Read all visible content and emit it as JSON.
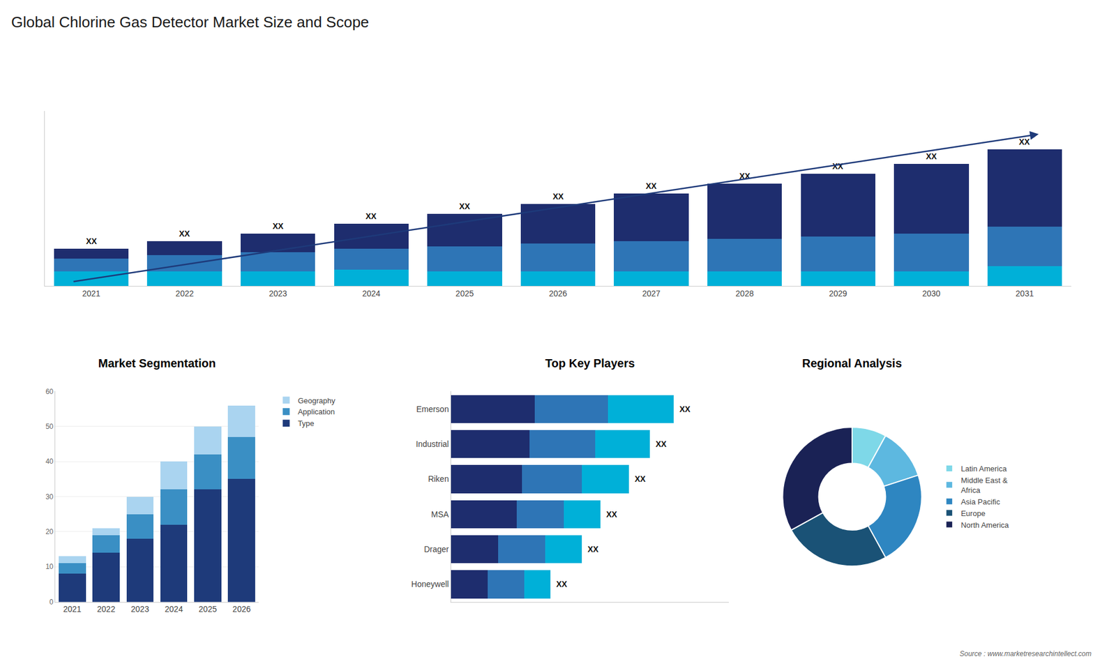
{
  "title": "Global Chlorine Gas Detector Market Size and Scope",
  "annotations": [
    "Source : www.marketresearchintellect.com"
  ],
  "chart_data": [
    {
      "type": "bar",
      "stacked": true,
      "categories": [
        "2021",
        "2022",
        "2023",
        "2024",
        "2025",
        "2026",
        "2027",
        "2028",
        "2029",
        "2030",
        "2031"
      ],
      "series": [
        {
          "color": "#00b0d8",
          "values": [
            0.6,
            0.6,
            0.6,
            0.65,
            0.6,
            0.6,
            0.6,
            0.6,
            0.6,
            0.6,
            0.79
          ]
        },
        {
          "color": "#2e75b6",
          "values": [
            0.5,
            0.65,
            0.75,
            0.85,
            1.0,
            1.1,
            1.2,
            1.3,
            1.4,
            1.5,
            1.6
          ]
        },
        {
          "color": "#1e2d6e",
          "values": [
            0.4,
            0.55,
            0.75,
            1.0,
            1.3,
            1.6,
            1.9,
            2.2,
            2.5,
            2.8,
            3.1
          ]
        }
      ],
      "ylim": [
        0,
        7.0272
      ],
      "tick_labels": "x",
      "grid": false,
      "annotations": [
        {
          "category": "2021",
          "text": "XX"
        },
        {
          "category": "2022",
          "text": "XX"
        },
        {
          "category": "2023",
          "text": "XX"
        },
        {
          "category": "2024",
          "text": "XX"
        },
        {
          "category": "2025",
          "text": "XX"
        },
        {
          "category": "2026",
          "text": "XX"
        },
        {
          "category": "2027",
          "text": "XX"
        },
        {
          "category": "2028",
          "text": "XX"
        },
        {
          "category": "2029",
          "text": "XX"
        },
        {
          "category": "2030",
          "text": "XX"
        },
        {
          "category": "2031",
          "text": "XX"
        }
      ]
    },
    {
      "type": "bar",
      "title": "Market Segmentation",
      "stacked": true,
      "categories": [
        "2021",
        "2022",
        "2023",
        "2024",
        "2025",
        "2026"
      ],
      "series": [
        {
          "name": "Type",
          "color": "#1e3a7a",
          "values": [
            8,
            14,
            18,
            22,
            32,
            35
          ]
        },
        {
          "name": "Application",
          "color": "#3a8fc4",
          "values": [
            3,
            5,
            7,
            10,
            10,
            12
          ]
        },
        {
          "name": "Geography",
          "color": "#aad4f0",
          "values": [
            2,
            2,
            5,
            8,
            8,
            9
          ]
        }
      ],
      "ylim": [
        0,
        60
      ],
      "yticks": [
        0,
        10,
        20,
        30,
        40,
        50,
        60
      ],
      "grid": true,
      "legend": "right"
    },
    {
      "type": "bar",
      "title": "Top Key Players",
      "orientation": "horizontal",
      "stacked": true,
      "categories": [
        "Emerson",
        "Industrial",
        "Riken",
        "MSA",
        "Drager",
        "Honeywell"
      ],
      "series": [
        {
          "color": "#1e2d6e",
          "values": [
            32,
            30,
            27,
            25,
            18,
            14
          ]
        },
        {
          "color": "#2e75b6",
          "values": [
            28,
            25,
            23,
            18,
            18,
            14
          ]
        },
        {
          "color": "#00b0d8",
          "values": [
            25,
            21,
            18,
            14,
            14,
            10
          ]
        }
      ],
      "xlim": [
        0,
        106.25
      ],
      "tick_labels": "y",
      "grid": false,
      "annotations": [
        {
          "category": "Emerson",
          "text": "XX"
        },
        {
          "category": "Industrial",
          "text": "XX"
        },
        {
          "category": "Riken",
          "text": "XX"
        },
        {
          "category": "MSA",
          "text": "XX"
        },
        {
          "category": "Drager",
          "text": "XX"
        },
        {
          "category": "Honeywell",
          "text": "XX"
        }
      ]
    },
    {
      "type": "pie",
      "title": "Regional Analysis",
      "categories": [
        "Latin America",
        "Middle East &\nAfrica",
        "Asia Pacific",
        "Europe",
        "North America"
      ],
      "values": [
        8,
        12,
        22,
        25,
        33
      ],
      "colors": [
        "#7ed8e8",
        "#5db8e0",
        "#2e86c1",
        "#1a5276",
        "#1a2255"
      ],
      "legend": "right"
    }
  ]
}
